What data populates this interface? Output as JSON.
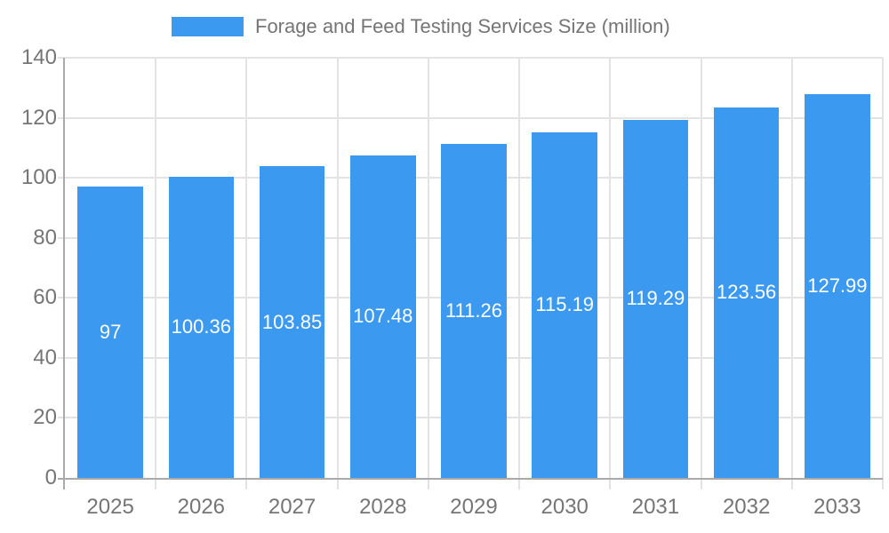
{
  "legend": {
    "label": "Forage and Feed Testing Services Size (million)"
  },
  "chart_data": {
    "type": "bar",
    "title": "Forage and Feed Testing Services Size (million)",
    "categories": [
      "2025",
      "2026",
      "2027",
      "2028",
      "2029",
      "2030",
      "2031",
      "2032",
      "2033"
    ],
    "series": [
      {
        "name": "Forage and Feed Testing Services Size (million)",
        "values": [
          97,
          100.36,
          103.85,
          107.48,
          111.26,
          115.19,
          119.29,
          123.56,
          127.99
        ]
      }
    ],
    "value_labels": [
      "97",
      "100.36",
      "103.85",
      "107.48",
      "111.26",
      "115.19",
      "119.29",
      "123.56",
      "127.99"
    ],
    "xlabel": "",
    "ylabel": "",
    "ylim": [
      0,
      140
    ],
    "yticks": [
      0,
      20,
      40,
      60,
      80,
      100,
      120,
      140
    ],
    "grid": true,
    "legend_position": "top",
    "colors": {
      "bar": "#3B99F0",
      "bar_label_text": "#ffffff",
      "axis_line": "#aaaaaa",
      "grid_line": "#e3e3e3",
      "axis_text": "#757575"
    }
  }
}
